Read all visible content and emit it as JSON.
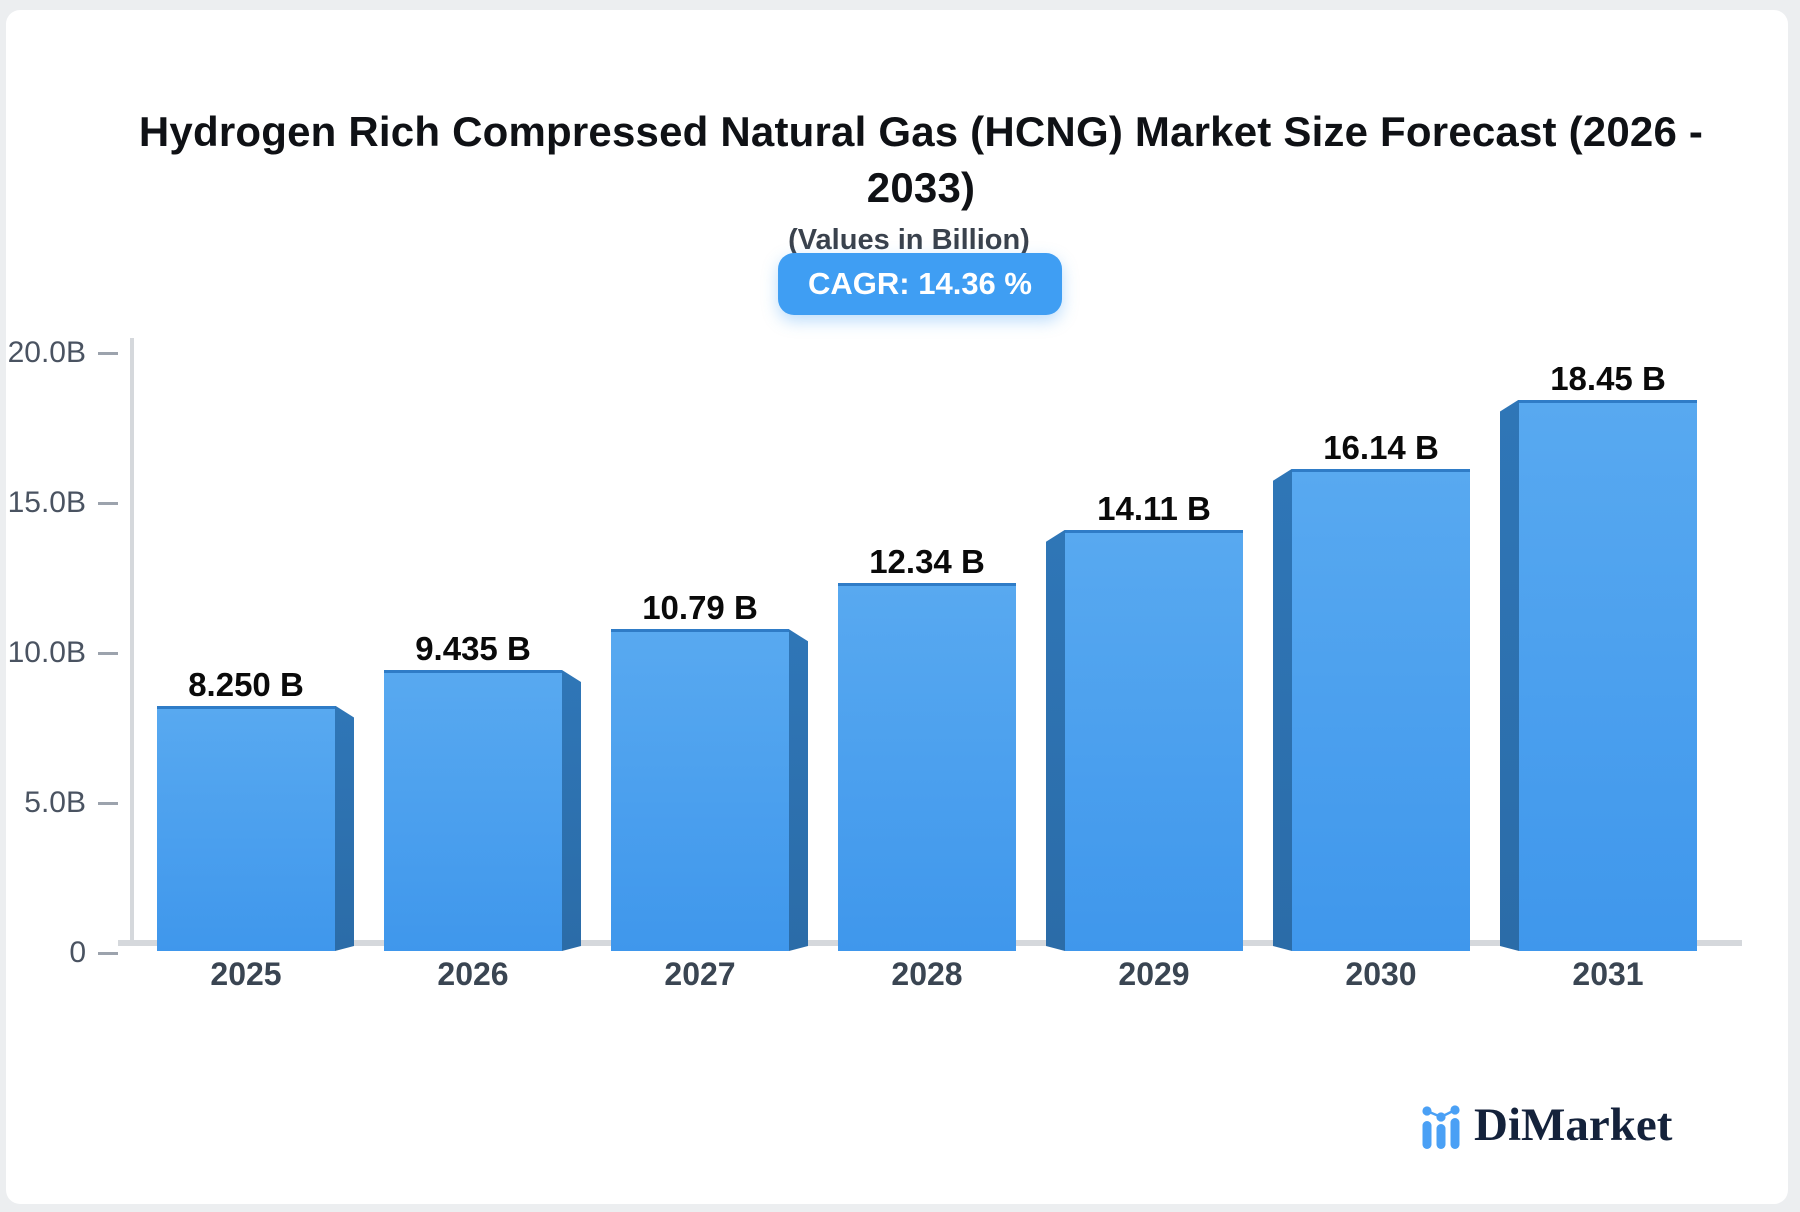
{
  "page": {
    "background": "#eceef0",
    "card_background": "#ffffff"
  },
  "title": {
    "line1": "Hydrogen Rich Compressed Natural Gas (HCNG) Market Size Forecast (2026 -",
    "line2": "2033)"
  },
  "subtitle": "(Values in Billion)",
  "badge": {
    "label": "CAGR: 14.36 %"
  },
  "chart_data": {
    "type": "bar",
    "title": "Hydrogen Rich Compressed Natural Gas (HCNG) Market Size Forecast (2026 - 2033)",
    "subtitle": "(Values in Billion)",
    "cagr_percent": 14.36,
    "categories": [
      "2025",
      "2026",
      "2027",
      "2028",
      "2029",
      "2030",
      "2031"
    ],
    "values": [
      8.25,
      9.435,
      10.79,
      12.34,
      14.11,
      16.14,
      18.45
    ],
    "value_labels": [
      "8.250 B",
      "9.435 B",
      "10.79 B",
      "12.34 B",
      "14.11 B",
      "16.14 B",
      "18.45 B"
    ],
    "unit_suffix": "B",
    "xlabel": "",
    "ylabel": "",
    "ylim": [
      0,
      20
    ],
    "yticks": [
      {
        "label": "20.0B",
        "value": 20
      },
      {
        "label": "15.0B",
        "value": 15
      },
      {
        "label": "10.0B",
        "value": 10
      },
      {
        "label": "5.0B",
        "value": 5
      },
      {
        "label": "0",
        "value": 0
      }
    ],
    "grid": false,
    "legend": "none",
    "bar_style": "3d-extruded"
  },
  "colors": {
    "badge_bg": "#3f9ef3",
    "bar_face_top": "#58a9f0",
    "bar_face_bottom": "#3f97ec",
    "bar_face_edge": "#2f7cc7",
    "bar_side_top": "#2f76b7",
    "bar_side_bottom": "#2b6ca8",
    "axis_line": "#d5d8dc",
    "tick": "#9ca3ad",
    "y_label": "#4a5361",
    "x_label": "#3a4552",
    "title": "#0f1115",
    "subtitle": "#3a424d",
    "logo_text": "#14223b",
    "logo_icon": "#4aa0f5"
  },
  "logo": {
    "text": "DiMarket",
    "icon": "mini-bar-chart-icon"
  }
}
